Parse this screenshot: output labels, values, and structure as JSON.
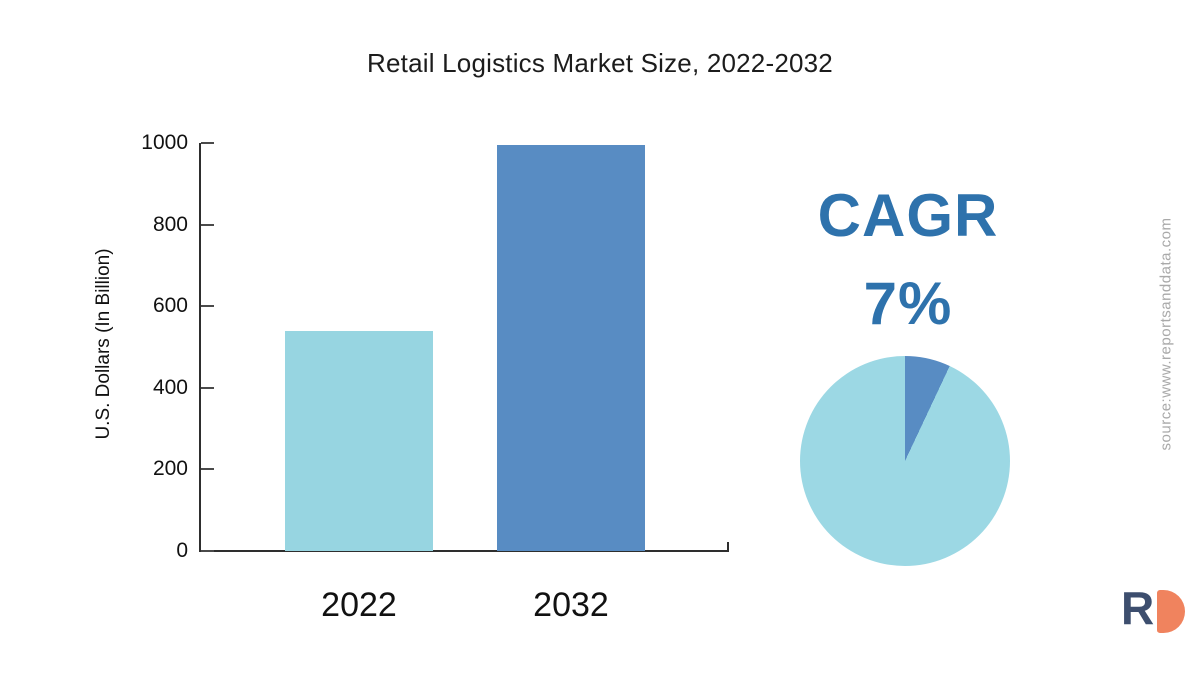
{
  "title": "Retail Logistics Market Size, 2022-2032",
  "watermark": "source:www.reportsanddata.com",
  "cagr": {
    "label": "CAGR",
    "value": "7%"
  },
  "logo": {
    "letter": "R",
    "d_color": "#f0835e",
    "r_color": "#3d4e6e"
  },
  "colors": {
    "bar_2022": "#97d5e1",
    "bar_2032": "#588cc3",
    "accent_text": "#2e72ac",
    "axis": "#2e2e2e",
    "watermark_gray": "#a9a9a9"
  },
  "chart_data": {
    "type": "bar",
    "title": "Retail Logistics Market Size, 2022-2032",
    "categories": [
      "2022",
      "2032"
    ],
    "values": [
      540,
      995
    ],
    "xlabel": "",
    "ylabel": "U.S. Dollars (In Billion)",
    "ylim": [
      0,
      1000
    ],
    "yticks": [
      0,
      200,
      400,
      600,
      800,
      1000
    ],
    "grid": false,
    "legend": "none",
    "bar_colors": [
      "#97d5e1",
      "#588cc3"
    ],
    "annotation": "CAGR 7%",
    "pie": {
      "type": "pie",
      "labels": [
        "CAGR",
        "remainder"
      ],
      "values": [
        7,
        93
      ],
      "colors": [
        "#588cc3",
        "#9cd8e4"
      ],
      "start_angle_deg": 0,
      "direction": "clockwise"
    }
  }
}
